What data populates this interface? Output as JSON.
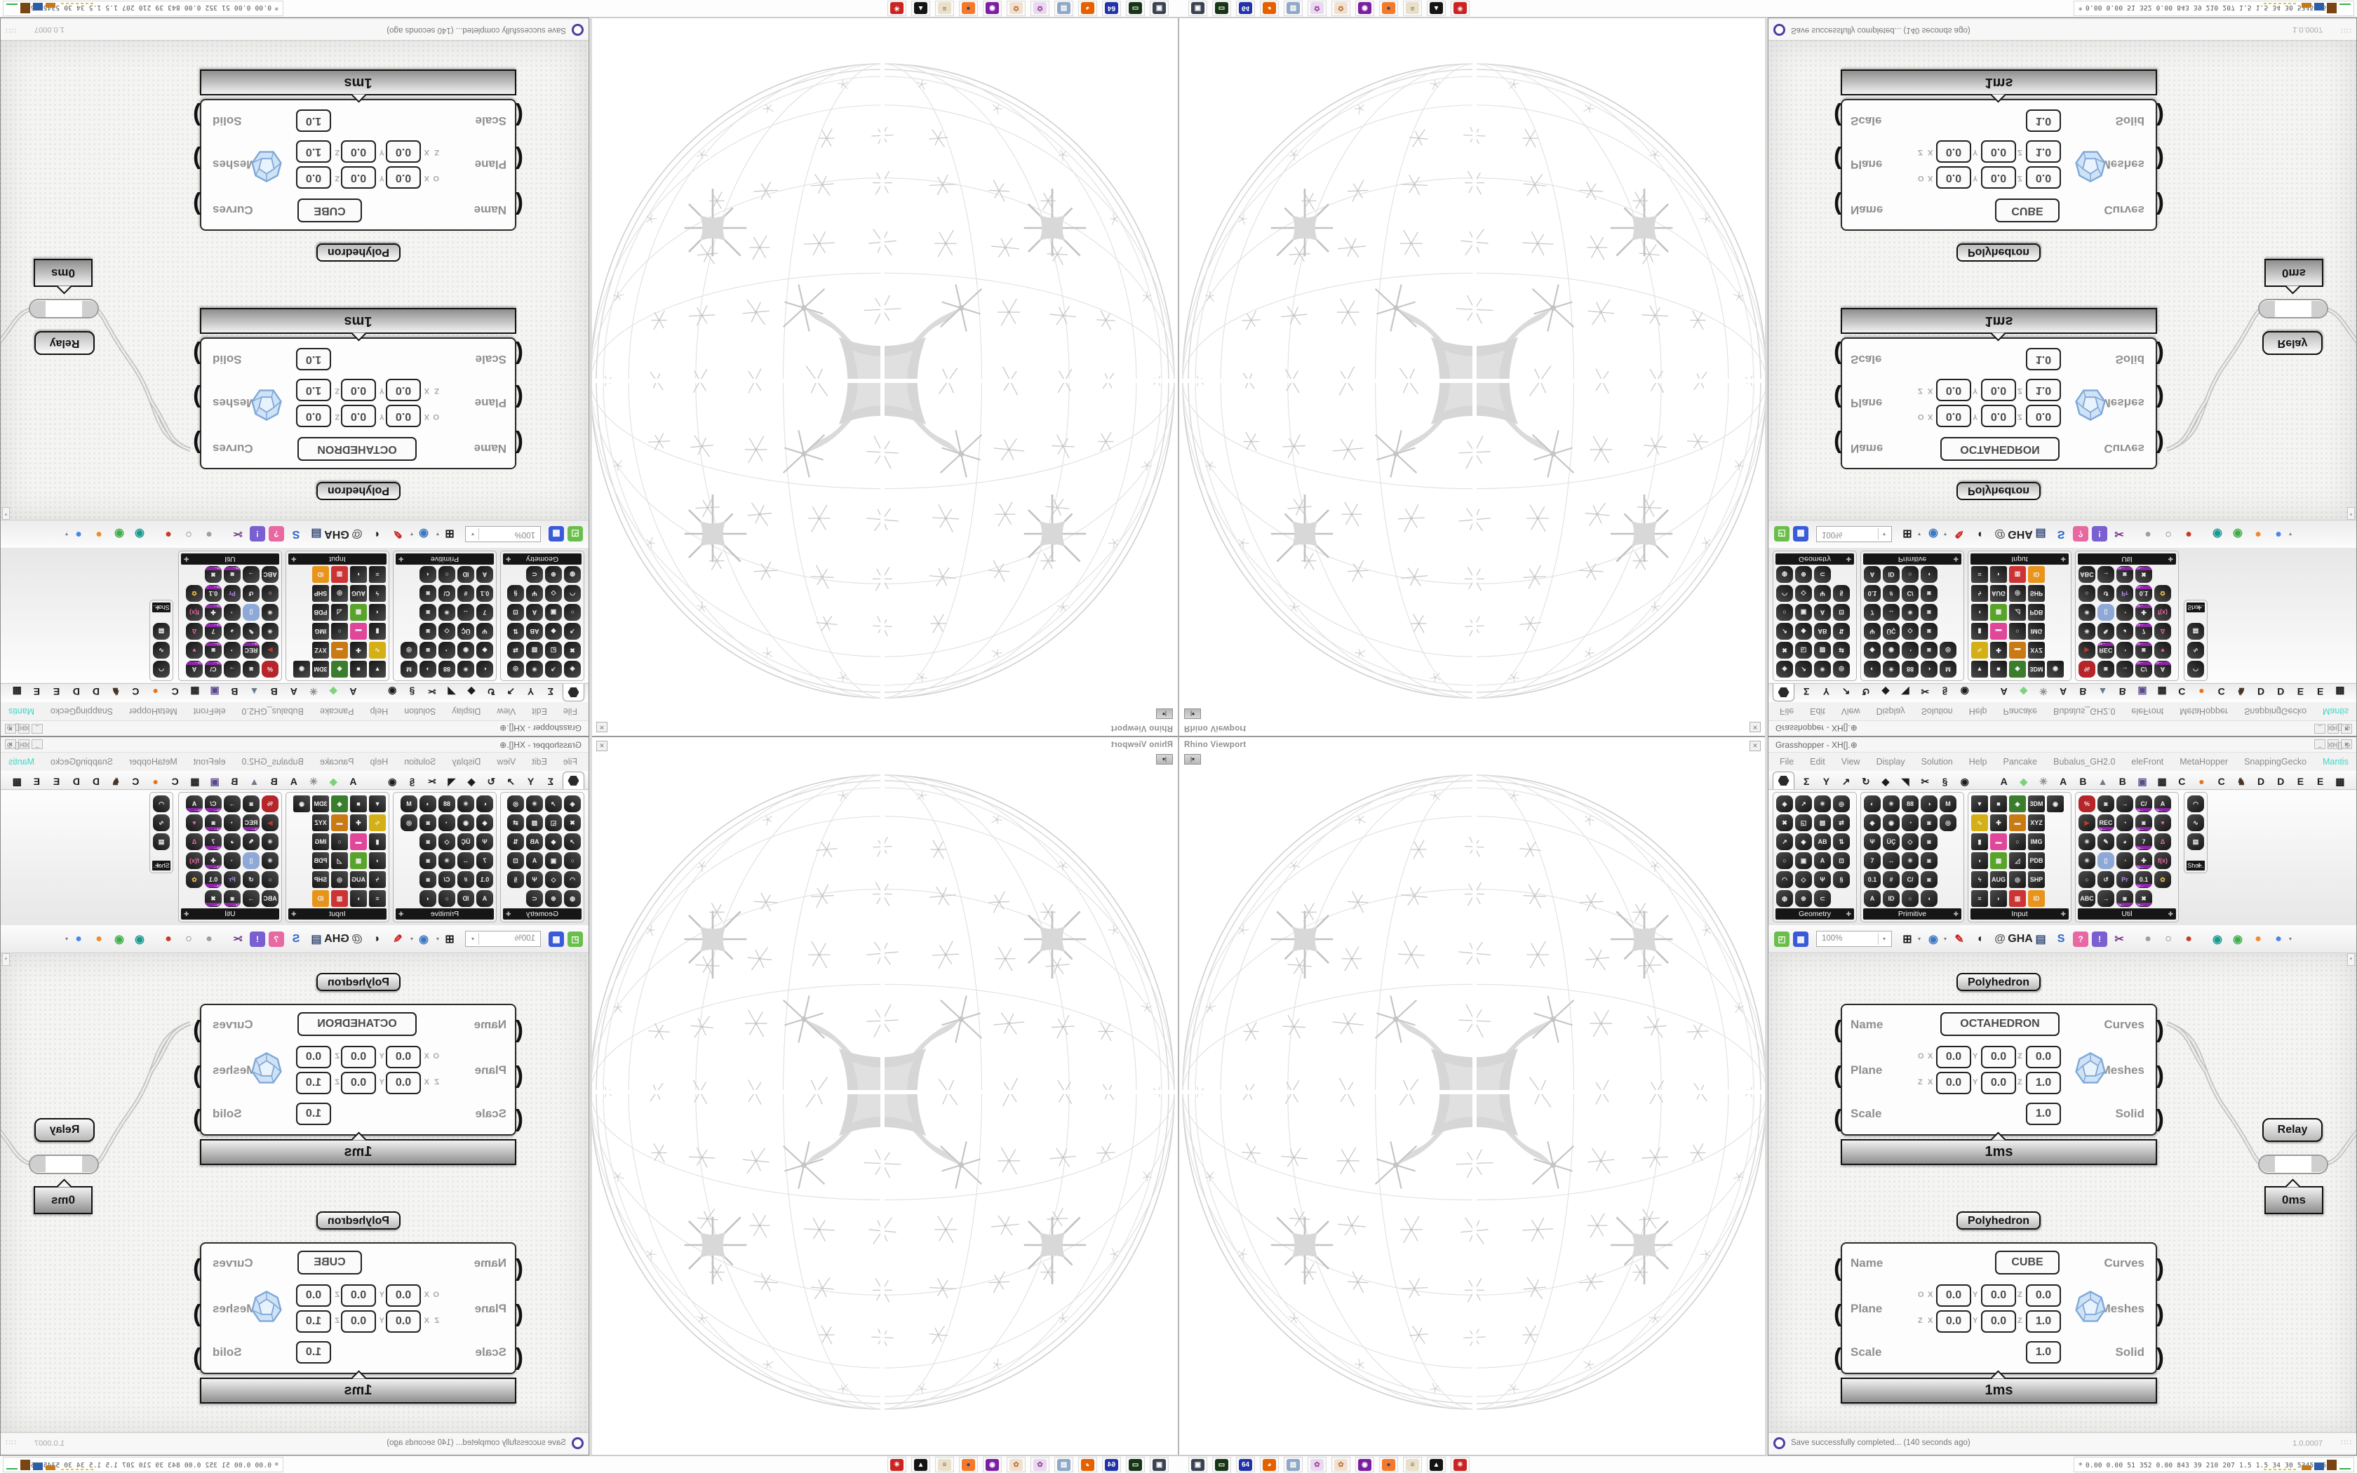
{
  "colors": {
    "mantis": "#3fd6c6",
    "wire_outer": "#c4c4c4",
    "wire_inner": "#efefef",
    "sphere_rim": "#cfcfcf",
    "sphere_net": "#e0e0e0",
    "sphere_star": "#c9c9c9",
    "sphere_blob": "#d8d8d8",
    "gem_fill": "#cfe2f6",
    "gem_stroke": "#7fa8d8",
    "accent_purple": "#8e24aa",
    "accent_pink": "#d63384"
  },
  "viewport": {
    "title": "Rhino Viewport",
    "close_glyph": "✕",
    "tab_glyph": "|▾"
  },
  "gh": {
    "title": "Grasshopper - XH[].⊕",
    "window_buttons": [
      "_",
      "□",
      "✕"
    ],
    "menus": [
      "File",
      "Edit",
      "View",
      "Display",
      "Solution",
      "Help",
      "Pancake",
      "Bubalus_GH2.0",
      "eleFront",
      "MetaHopper",
      "SnappingGecko",
      "Mantis"
    ],
    "menu_right": "XH[].⊕",
    "tabs": [
      {
        "hex": true,
        "sel": true,
        "name": "tab-params"
      },
      {
        "g": "Σ"
      },
      {
        "g": "Y"
      },
      {
        "g": "↗"
      },
      {
        "g": "↻"
      },
      {
        "g": "◆"
      },
      {
        "g": "◥"
      },
      {
        "g": "✂"
      },
      {
        "g": "§"
      },
      {
        "g": "◉"
      },
      {
        "spacer": true
      },
      {
        "g": "A"
      },
      {
        "g": "◆",
        "c": "#7fd17f"
      },
      {
        "g": "✳",
        "c": "#8a8a8a"
      },
      {
        "g": "A"
      },
      {
        "g": "B"
      },
      {
        "g": "▲",
        "c": "#6b7b8c"
      },
      {
        "g": "B"
      },
      {
        "g": "▣",
        "c": "#5b4a8a"
      },
      {
        "g": "▦"
      },
      {
        "g": "C"
      },
      {
        "g": "●",
        "c": "#e8731a"
      },
      {
        "g": "C"
      },
      {
        "g": "♞",
        "c": "#4a3423"
      },
      {
        "g": "D"
      },
      {
        "g": "D"
      },
      {
        "g": "E"
      },
      {
        "g": "E"
      },
      {
        "g": "▩"
      }
    ],
    "palettes": [
      {
        "label": "Geometry",
        "cols": 4,
        "cls": "pal-geometry",
        "icons": [
          {
            "g": "◈"
          },
          {
            "g": "↗"
          },
          {
            "g": "✳"
          },
          {
            "g": "◎"
          },
          {
            "g": "✖"
          },
          {
            "g": "◱"
          },
          {
            "g": "▧"
          },
          {
            "g": "⇄"
          },
          {
            "g": "↗"
          },
          {
            "g": "◆"
          },
          {
            "g": "AB"
          },
          {
            "g": "⇅"
          },
          {
            "g": "○"
          },
          {
            "g": "▣"
          },
          {
            "g": "A"
          },
          {
            "g": "⊡"
          },
          {
            "g": "◠"
          },
          {
            "g": "◇"
          },
          {
            "g": "Ψ"
          },
          {
            "g": "§"
          },
          {
            "g": "◍"
          },
          {
            "g": "⊕"
          },
          {
            "g": "⊂"
          },
          null
        ]
      },
      {
        "label": "Primitive",
        "cols": 5,
        "cls": "pal-primitive",
        "icons": [
          {
            "g": "◐"
          },
          {
            "g": "✳"
          },
          {
            "g": "88"
          },
          {
            "g": "◑"
          },
          {
            "g": "M"
          },
          {
            "g": "◆"
          },
          {
            "g": "◉"
          },
          {
            "g": "◔"
          },
          {
            "g": "◙"
          },
          {
            "g": "◎"
          },
          {
            "g": "Ψ"
          },
          {
            "g": "ÜÇ"
          },
          {
            "g": "◇"
          },
          {
            "g": "◙"
          },
          null,
          {
            "g": "7"
          },
          {
            "g": "↔"
          },
          {
            "g": "✳"
          },
          {
            "g": "◙"
          },
          null,
          {
            "g": "0.1"
          },
          {
            "g": "#"
          },
          {
            "g": "C/"
          },
          {
            "g": "◙"
          },
          null,
          {
            "g": "A"
          },
          {
            "g": "ID"
          },
          {
            "g": "○"
          },
          {
            "g": "◖"
          },
          null
        ]
      },
      {
        "label": "Input",
        "cols": 5,
        "cls": "pal-input",
        "icons": [
          {
            "g": "▼",
            "t": "chip"
          },
          {
            "g": "■",
            "t": "chip"
          },
          {
            "g": "◆",
            "t": "chip",
            "bg": "#3a7d2c"
          },
          {
            "g": "3DM",
            "t": "chip"
          },
          {
            "g": "◉",
            "t": "chip"
          },
          {
            "g": "∿",
            "t": "chip",
            "bg": "#d4b016"
          },
          {
            "g": "✚",
            "t": "chip"
          },
          {
            "g": "▬",
            "t": "chip",
            "bg": "#c97a12"
          },
          {
            "g": "XYZ",
            "t": "chip"
          },
          null,
          {
            "g": "▮",
            "t": "chip"
          },
          {
            "g": "▬",
            "t": "chip",
            "bg": "#e0469a"
          },
          {
            "g": "○",
            "t": "chip"
          },
          {
            "g": "IMG",
            "t": "chip"
          },
          null,
          {
            "g": "◖",
            "t": "chip"
          },
          {
            "g": "▦",
            "t": "chip",
            "bg": "#58a32a"
          },
          {
            "g": "◿",
            "t": "chip"
          },
          {
            "g": "PDB",
            "t": "chip"
          },
          null,
          {
            "g": "ϟ",
            "t": "chip"
          },
          {
            "g": "AUG",
            "t": "chip"
          },
          {
            "g": "◎",
            "t": "chip"
          },
          {
            "g": "SHP",
            "t": "chip"
          },
          null,
          {
            "g": "≡",
            "t": "chip"
          },
          {
            "g": "◗",
            "t": "chip"
          },
          {
            "g": "▥",
            "t": "chip",
            "bg": "#cc3333"
          },
          {
            "g": "ID",
            "t": "chip",
            "bg": "#e8941a"
          },
          null
        ]
      },
      {
        "label": "Util",
        "cols": 5,
        "cls": "pal-util",
        "icons": [
          {
            "g": "%",
            "bg": "#b5252a"
          },
          {
            "g": "◙"
          },
          {
            "g": "→"
          },
          {
            "g": "C/",
            "bar": true
          },
          {
            "g": "A",
            "bar": true
          },
          {
            "g": "▶",
            "fg": "#c0392b"
          },
          {
            "g": "REC",
            "bar": true
          },
          {
            "g": "◔"
          },
          {
            "g": "◙",
            "bar": true
          },
          {
            "g": "♥",
            "fg": "#e868a2"
          },
          {
            "g": "✳"
          },
          {
            "g": "✎"
          },
          {
            "g": "◕"
          },
          {
            "g": "7",
            "bar": true
          },
          {
            "g": "Δ",
            "fg": "#e868a2"
          },
          {
            "g": "✳"
          },
          {
            "g": "▯",
            "bg": "#8ea8d8"
          },
          {
            "g": "◔",
            "fg": "#e8c04a"
          },
          {
            "g": "✚",
            "bar": true
          },
          {
            "g": "f(x)",
            "fg": "#e868a2"
          },
          {
            "g": "○"
          },
          {
            "g": "↺"
          },
          {
            "g": "Pr",
            "fg": "#b08ae8"
          },
          {
            "g": "0.1",
            "bar": true
          },
          {
            "g": "✿",
            "fg": "#e8b84a"
          },
          {
            "g": "ABC"
          },
          {
            "g": "→"
          },
          {
            "g": "◙",
            "bar": true
          },
          {
            "g": "✖",
            "bar": true
          },
          null
        ]
      },
      {
        "label": "Sho...",
        "cols": 1,
        "cls": "pal-show",
        "icons": [
          {
            "g": "◠",
            "name": "goggles-info-icon"
          },
          {
            "g": "∿",
            "name": "goggles-wire-icon"
          },
          {
            "g": "▤",
            "name": "presentation-icon"
          }
        ]
      }
    ],
    "toolbar": {
      "zoom": "100%",
      "combo_caret": "▾",
      "icons": [
        {
          "name": "open-file-icon",
          "g": "◰",
          "bg": "#6abf4b",
          "fg": "#fff"
        },
        {
          "name": "save-file-icon",
          "g": "▦",
          "bg": "#3a5bd9",
          "fg": "#fff"
        },
        {
          "name": "zoom-combo"
        },
        {
          "name": "zoom-extents-icon",
          "g": "⊞",
          "fg": "#1a1a1a"
        },
        {
          "name": "caret"
        },
        {
          "name": "preview-eye-icon",
          "g": "◉",
          "fg": "#3a78c2"
        },
        {
          "name": "caret"
        },
        {
          "name": "sketch-icon",
          "g": "✎",
          "fg": "#cc2222"
        },
        {
          "name": "exit-icon",
          "g": "◖",
          "fg": "#222"
        },
        {
          "name": "publish-icon",
          "g": "@",
          "fg": "#555"
        },
        {
          "name": "gha-icon",
          "g": "GHA",
          "fg": "#222"
        },
        {
          "name": "page-icon",
          "g": "▤",
          "fg": "#334a77"
        },
        {
          "name": "search-icon",
          "g": "S",
          "fg": "#2a66c9"
        },
        {
          "name": "help-box-icon",
          "g": "?",
          "bg": "#e868a2",
          "fg": "#fff"
        },
        {
          "name": "idea-bulb-icon",
          "g": "!",
          "bg": "#7a5fd0",
          "fg": "#fff"
        },
        {
          "name": "scissors-icon",
          "g": "✂",
          "fg": "#7a3a8a"
        },
        {
          "name": "gap"
        },
        {
          "name": "ball-gray-icon",
          "g": "●",
          "fg": "#9e9e9e"
        },
        {
          "name": "ball-wire-icon",
          "g": "○",
          "fg": "#7a7a7a"
        },
        {
          "name": "ball-red-icon",
          "g": "●",
          "fg": "#c43b2a"
        },
        {
          "name": "gap"
        },
        {
          "name": "pin-teal-icon",
          "g": "◉",
          "fg": "#159a8d"
        },
        {
          "name": "pin-green-icon",
          "g": "◉",
          "fg": "#3fae49"
        },
        {
          "name": "ball-orange-icon",
          "g": "●",
          "fg": "#ef8b2a"
        },
        {
          "name": "ball-blue-icon",
          "g": "●",
          "fg": "#4a86e8"
        },
        {
          "name": "caret"
        }
      ]
    },
    "status": {
      "text": "Save successfully completed... (140 seconds ago)",
      "version": "1.0.0007",
      "grip": "∷∷"
    },
    "canvas": {
      "grip_in": "(",
      "grip_out": ")",
      "components": [
        {
          "nickname": "Polyhedron",
          "time": "1ms",
          "name_value": "OCTAHEDRON",
          "inputs": [
            "Name",
            "Plane",
            "Scale"
          ],
          "outputs": [
            "Curves",
            "Meshes",
            "Solid"
          ],
          "scale_value": "1.0",
          "plane_rows": [
            {
              "prefix": "O",
              "cells": [
                {
                  "axis": "X",
                  "v": "0.0"
                },
                {
                  "axis": "Y",
                  "v": "0.0"
                },
                {
                  "axis": "Z",
                  "v": "0.0"
                }
              ]
            },
            {
              "prefix": "Z",
              "cells": [
                {
                  "axis": "X",
                  "v": "0.0"
                },
                {
                  "axis": "Y",
                  "v": "0.0"
                },
                {
                  "axis": "Z",
                  "v": "1.0"
                }
              ]
            }
          ]
        },
        {
          "nickname": "Polyhedron",
          "time": "1ms",
          "name_value": "CUBE",
          "inputs": [
            "Name",
            "Plane",
            "Scale"
          ],
          "outputs": [
            "Curves",
            "Meshes",
            "Solid"
          ],
          "scale_value": "1.0",
          "plane_rows": [
            {
              "prefix": "O",
              "cells": [
                {
                  "axis": "X",
                  "v": "0.0"
                },
                {
                  "axis": "Y",
                  "v": "0.0"
                },
                {
                  "axis": "Z",
                  "v": "0.0"
                }
              ]
            },
            {
              "prefix": "Z",
              "cells": [
                {
                  "axis": "X",
                  "v": "0.0"
                },
                {
                  "axis": "Y",
                  "v": "0.0"
                },
                {
                  "axis": "Z",
                  "v": "1.0"
                }
              ]
            }
          ]
        }
      ],
      "relay": {
        "label": "Relay",
        "time": "0ms"
      }
    }
  },
  "taskbar": {
    "icons": [
      {
        "name": "monitor-capture-icon",
        "g": "▣",
        "bg": "#3b4252"
      },
      {
        "name": "screen-recorder-icon",
        "g": "▭",
        "bg": "#163616"
      },
      {
        "name": "floppy-64-icon",
        "g": "64",
        "bg": "#2233aa"
      },
      {
        "name": "firefox-icon",
        "g": "◕",
        "bg": "#e66000"
      },
      {
        "name": "calculator-icon",
        "g": "▤",
        "bg": "#8fa8c8"
      },
      {
        "name": "paint-palette-icon",
        "g": "✿",
        "bg": "#e8d8f0",
        "fg": "#a04aa0"
      },
      {
        "name": "paint-palette-icon-2",
        "g": "✿",
        "bg": "#f0e0d0",
        "fg": "#c07a3a"
      },
      {
        "name": "owl-icon",
        "g": "◉",
        "bg": "#7b1fa2"
      },
      {
        "name": "blender-icon",
        "g": "●",
        "bg": "#f5792a",
        "fg": "#2a4a77"
      },
      {
        "name": "scroll-icon",
        "g": "≡",
        "bg": "#e8e0c8",
        "fg": "#7a6a4a"
      },
      {
        "name": "cat-icon",
        "g": "▲",
        "bg": "#141414"
      },
      {
        "name": "red-gear-icon",
        "g": "✳",
        "bg": "#cc2222"
      }
    ],
    "sysmon": {
      "prefix_glyph": "∗",
      "text": "0.00 0.00  51  352 0.00 843  39  210 207  1.5  1.5  34  30 53457054",
      "chart": {
        "tick_color": "#d9cb30",
        "bars": [
          {
            "c": "#c47a18",
            "h": 7
          },
          {
            "c": "#2b5ea7",
            "h": 11
          },
          {
            "c": "#7a4413",
            "h": 15
          }
        ],
        "tail_color": "#35b24a"
      }
    }
  }
}
